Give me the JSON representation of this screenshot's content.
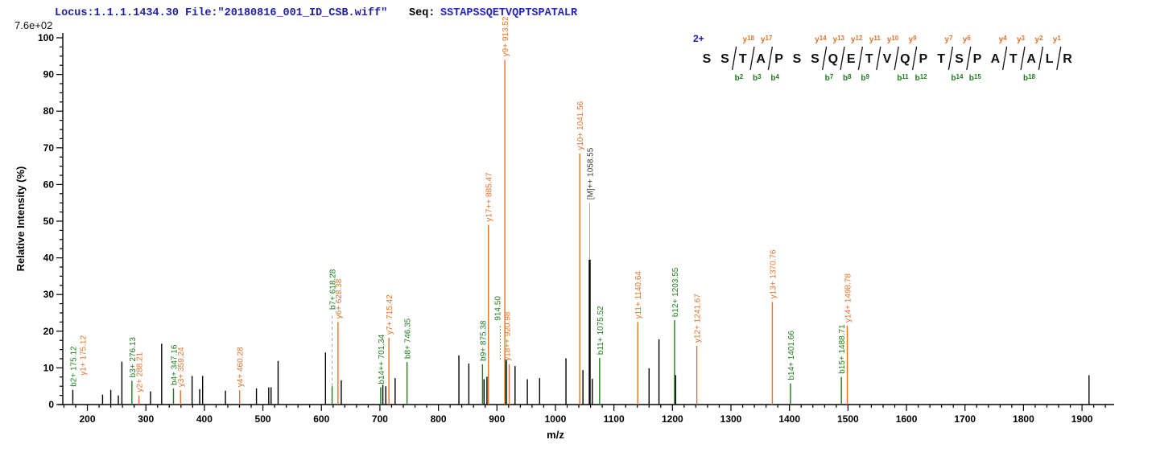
{
  "header": {
    "locus_file": "Locus:1.1.1.1434.30 File:\"20180816_001_ID_CSB.wiff\"",
    "seq_label": "Seq:",
    "sequence": "SSTAPSSQETVQPTSPATALR",
    "magnitude": "7.6e+02"
  },
  "colors": {
    "header_blue": "#1f1fa8",
    "seq_blue": "#2424c0",
    "charge_blue": "#1414c8",
    "y_ion_orange": "#e2732b",
    "b_ion_green": "#1e7b1e",
    "peak_black": "#000000",
    "precursor_label": "#3c3c3c",
    "leader_gray": "#a8a8a8",
    "axis_black": "#000000"
  },
  "axes": {
    "x": {
      "label": "m/z",
      "min": 150,
      "max": 1955,
      "major_start": 200,
      "major_end": 1900,
      "major_step": 100,
      "minor_step": 20
    },
    "y": {
      "label": "Relative  Intensity (%)",
      "min": 0,
      "max": 100,
      "major_step": 10,
      "minor_step": 2.5
    }
  },
  "chart_data": {
    "type": "bar",
    "subtype": "MS/MS fragmentation spectrum",
    "title": "",
    "xlabel": "m/z",
    "ylabel": "Relative  Intensity (%)",
    "xlim": [
      150,
      1955
    ],
    "ylim": [
      0,
      100
    ],
    "grid": false,
    "peaks": [
      [
        175.12,
        4.0,
        "k"
      ],
      [
        226,
        2.7,
        "k"
      ],
      [
        240,
        4.0,
        "k"
      ],
      [
        253,
        2.5,
        "k"
      ],
      [
        259,
        11.7,
        "k"
      ],
      [
        276.13,
        6.5,
        "g"
      ],
      [
        288.21,
        2.5,
        "o"
      ],
      [
        308,
        3.6,
        "k"
      ],
      [
        327,
        16.6,
        "k"
      ],
      [
        347.16,
        4.4,
        "g"
      ],
      [
        359.24,
        3.9,
        "o"
      ],
      [
        379,
        7.8,
        "k"
      ],
      [
        392,
        4.2,
        "k"
      ],
      [
        397,
        7.8,
        "k"
      ],
      [
        436,
        3.8,
        "k"
      ],
      [
        460.28,
        3.9,
        "o"
      ],
      [
        489,
        4.4,
        "k"
      ],
      [
        510,
        4.7,
        "k"
      ],
      [
        514,
        4.7,
        "k"
      ],
      [
        526,
        11.9,
        "k"
      ],
      [
        607,
        14.2,
        "k"
      ],
      [
        618.28,
        5.0,
        "g"
      ],
      [
        628.38,
        22.5,
        "o"
      ],
      [
        634,
        6.6,
        "k"
      ],
      [
        701.34,
        4.7,
        "g"
      ],
      [
        705,
        5.4,
        "k"
      ],
      [
        710,
        5.0,
        "k"
      ],
      [
        715.42,
        18.2,
        "o"
      ],
      [
        726,
        7.2,
        "k"
      ],
      [
        746.35,
        11.6,
        "g"
      ],
      [
        835,
        13.4,
        "k"
      ],
      [
        852,
        11.2,
        "k"
      ],
      [
        875.38,
        11.0,
        "g"
      ],
      [
        878,
        6.9,
        "k"
      ],
      [
        883,
        7.6,
        "k"
      ],
      [
        885.47,
        49.0,
        "o"
      ],
      [
        913.52,
        94.0,
        "o"
      ],
      [
        915.3,
        12.3,
        "k"
      ],
      [
        916.6,
        12.3,
        "g"
      ],
      [
        920.98,
        11.0,
        "o"
      ],
      [
        931,
        10.5,
        "k"
      ],
      [
        952,
        6.9,
        "k"
      ],
      [
        973,
        7.2,
        "k"
      ],
      [
        1018,
        12.6,
        "k"
      ],
      [
        1041.56,
        68.5,
        "o"
      ],
      [
        1047,
        9.4,
        "k"
      ],
      [
        1058.55,
        39.5,
        "k2"
      ],
      [
        1063,
        7.0,
        "k"
      ],
      [
        1075.52,
        12.7,
        "g"
      ],
      [
        1140.64,
        22.5,
        "o"
      ],
      [
        1160,
        9.9,
        "k"
      ],
      [
        1177,
        17.8,
        "k"
      ],
      [
        1203.55,
        23.0,
        "g"
      ],
      [
        1205.5,
        8.0,
        "k"
      ],
      [
        1241.67,
        16.0,
        "o"
      ],
      [
        1370.76,
        28.0,
        "o"
      ],
      [
        1401.66,
        5.8,
        "g"
      ],
      [
        1488.71,
        7.5,
        "g"
      ],
      [
        1498.78,
        21.5,
        "o"
      ],
      [
        1912,
        8.0,
        "k"
      ]
    ],
    "annotations": [
      {
        "mz": 175.12,
        "at": 4.0,
        "text": "b2+ 175.12",
        "c": "g",
        "dx": 0,
        "lift": 0
      },
      {
        "mz": 175.12,
        "at": 4.0,
        "text": "y1+ 175.12",
        "c": "o",
        "dx": 12,
        "lift": 14
      },
      {
        "mz": 276.13,
        "at": 6.5,
        "text": "b3+ 276.13",
        "c": "g"
      },
      {
        "mz": 288.21,
        "at": 2.5,
        "text": "y2+ 288.21",
        "c": "o"
      },
      {
        "mz": 347.16,
        "at": 4.4,
        "text": "b4+ 347.16",
        "c": "g"
      },
      {
        "mz": 359.24,
        "at": 3.9,
        "text": "y3+ 359.24",
        "c": "o"
      },
      {
        "mz": 460.28,
        "at": 3.9,
        "text": "y4+ 460.28",
        "c": "o"
      },
      {
        "mz": 618.28,
        "at": 25.0,
        "text": "b7+ 618.28",
        "c": "g"
      },
      {
        "mz": 628.38,
        "at": 22.5,
        "text": "y6+ 628.38",
        "c": "o"
      },
      {
        "mz": 701.34,
        "at": 4.7,
        "text": "b14++ 701.34",
        "c": "g"
      },
      {
        "mz": 715.42,
        "at": 18.2,
        "text": "y7+ 715.42",
        "c": "o"
      },
      {
        "mz": 746.35,
        "at": 11.6,
        "text": "b8+ 746.35",
        "c": "g"
      },
      {
        "mz": 875.38,
        "at": 11.0,
        "text": "b9+ 875.38",
        "c": "g"
      },
      {
        "mz": 885.47,
        "at": 49.0,
        "text": "y17++ 885.47",
        "c": "o"
      },
      {
        "mz": 913.52,
        "at": 94.0,
        "text": "y9+ 913.52",
        "c": "o"
      },
      {
        "mz": 916.6,
        "at": 22.0,
        "text": "914.50",
        "c": "g",
        "dx": -12
      },
      {
        "mz": 920.98,
        "at": 11.0,
        "text": "y18++ 920.98",
        "c": "o",
        "dx": -3
      },
      {
        "mz": 1041.56,
        "at": 68.5,
        "text": "y10+ 1041.56",
        "c": "o"
      },
      {
        "mz": 1058.55,
        "at": 55.0,
        "text": "[M]++ 1058.55",
        "c": "m"
      },
      {
        "mz": 1075.52,
        "at": 12.7,
        "text": "b11+ 1075.52",
        "c": "g"
      },
      {
        "mz": 1140.64,
        "at": 22.5,
        "text": "y11+ 1140.64",
        "c": "o"
      },
      {
        "mz": 1203.55,
        "at": 23.0,
        "text": "b12+ 1203.55",
        "c": "g"
      },
      {
        "mz": 1241.67,
        "at": 16.0,
        "text": "y12+ 1241.67",
        "c": "o"
      },
      {
        "mz": 1370.76,
        "at": 28.0,
        "text": "y13+ 1370.76",
        "c": "o"
      },
      {
        "mz": 1401.66,
        "at": 5.8,
        "text": "b14+ 1401.66",
        "c": "g"
      },
      {
        "mz": 1488.71,
        "at": 7.5,
        "text": "b15+ 1488.71",
        "c": "g"
      },
      {
        "mz": 1498.78,
        "at": 21.5,
        "text": "y14+ 1498.78",
        "c": "o"
      }
    ],
    "leaders": [
      {
        "mz": 618.28,
        "from": 5.0,
        "to": 25.0,
        "style": "dashed",
        "c": "gray"
      },
      {
        "mz": 916.6,
        "from": 12.3,
        "to": 22.0,
        "style": "dotted",
        "c": "g",
        "dx": -8
      },
      {
        "mz": 1058.55,
        "from": 39.5,
        "to": 55.0,
        "style": "solid",
        "c": "gray"
      }
    ]
  },
  "sequence_map": {
    "charge_label": "2+",
    "residues": [
      "S",
      "S",
      "T",
      "A",
      "P",
      "S",
      "S",
      "Q",
      "E",
      "T",
      "V",
      "Q",
      "P",
      "T",
      "S",
      "P",
      "A",
      "T",
      "A",
      "L",
      "R"
    ],
    "y_ions": [
      {
        "label": "y",
        "num": "18",
        "boundary": 3
      },
      {
        "label": "y",
        "num": "17",
        "boundary": 4
      },
      {
        "label": "y",
        "num": "14",
        "boundary": 7
      },
      {
        "label": "y",
        "num": "13",
        "boundary": 8
      },
      {
        "label": "y",
        "num": "12",
        "boundary": 9
      },
      {
        "label": "y",
        "num": "11",
        "boundary": 10
      },
      {
        "label": "y",
        "num": "10",
        "boundary": 11
      },
      {
        "label": "y",
        "num": "9",
        "boundary": 12
      },
      {
        "label": "y",
        "num": "7",
        "boundary": 14
      },
      {
        "label": "y",
        "num": "6",
        "boundary": 15
      },
      {
        "label": "y",
        "num": "4",
        "boundary": 17
      },
      {
        "label": "y",
        "num": "3",
        "boundary": 18
      },
      {
        "label": "y",
        "num": "2",
        "boundary": 19
      },
      {
        "label": "y",
        "num": "1",
        "boundary": 20
      }
    ],
    "b_ions": [
      {
        "label": "b",
        "num": "2",
        "boundary": 2
      },
      {
        "label": "b",
        "num": "3",
        "boundary": 3
      },
      {
        "label": "b",
        "num": "4",
        "boundary": 4
      },
      {
        "label": "b",
        "num": "7",
        "boundary": 7
      },
      {
        "label": "b",
        "num": "8",
        "boundary": 8
      },
      {
        "label": "b",
        "num": "9",
        "boundary": 9
      },
      {
        "label": "b",
        "num": "11",
        "boundary": 11
      },
      {
        "label": "b",
        "num": "12",
        "boundary": 12
      },
      {
        "label": "b",
        "num": "14",
        "boundary": 14
      },
      {
        "label": "b",
        "num": "15",
        "boundary": 15
      },
      {
        "label": "b",
        "num": "18",
        "boundary": 18
      }
    ]
  }
}
